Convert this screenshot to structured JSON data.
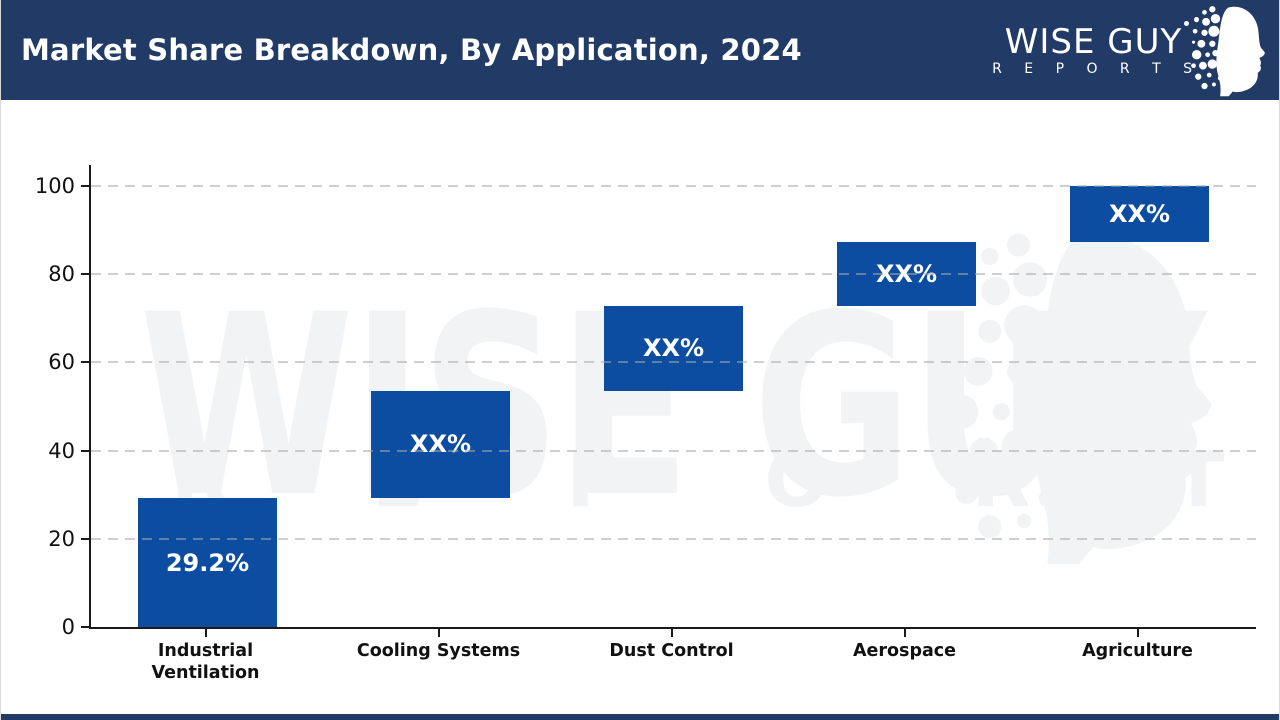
{
  "header": {
    "title": "Market Share Breakdown, By Application, 2024",
    "logo": {
      "brand_top": "WISE GUY",
      "brand_bottom": "R E P O R T S"
    }
  },
  "watermark": {
    "line1": "WISE GUY",
    "line2": "R E P O R T S"
  },
  "chart_data": {
    "type": "bar",
    "subtype": "waterfall",
    "title": "Market Share Breakdown, By Application, 2024",
    "categories": [
      "Industrial Ventilation",
      "Cooling Systems",
      "Dust Control",
      "Aerospace",
      "Agriculture"
    ],
    "segments": [
      {
        "category": "Industrial Ventilation",
        "start": 0,
        "end": 29.2,
        "label": "29.2%"
      },
      {
        "category": "Cooling Systems",
        "start": 29.2,
        "end": 53.6,
        "label": "XX%"
      },
      {
        "category": "Dust Control",
        "start": 53.6,
        "end": 72.9,
        "label": "XX%"
      },
      {
        "category": "Aerospace",
        "start": 72.9,
        "end": 87.2,
        "label": "XX%"
      },
      {
        "category": "Agriculture",
        "start": 87.2,
        "end": 100,
        "label": "XX%"
      }
    ],
    "xlabel": "",
    "ylabel": "",
    "ylim": [
      0,
      100
    ],
    "yticks": [
      0,
      20,
      40,
      60,
      80,
      100
    ],
    "grid": "horizontal-dashed",
    "legend": null,
    "colors": {
      "bar": "#0c4da2",
      "bar_label": "#ffffff",
      "axis": "#1a1a1a",
      "gridline": "#d0d0d0",
      "header_bg": "#213a66",
      "watermark": "#f2f3f5"
    }
  }
}
